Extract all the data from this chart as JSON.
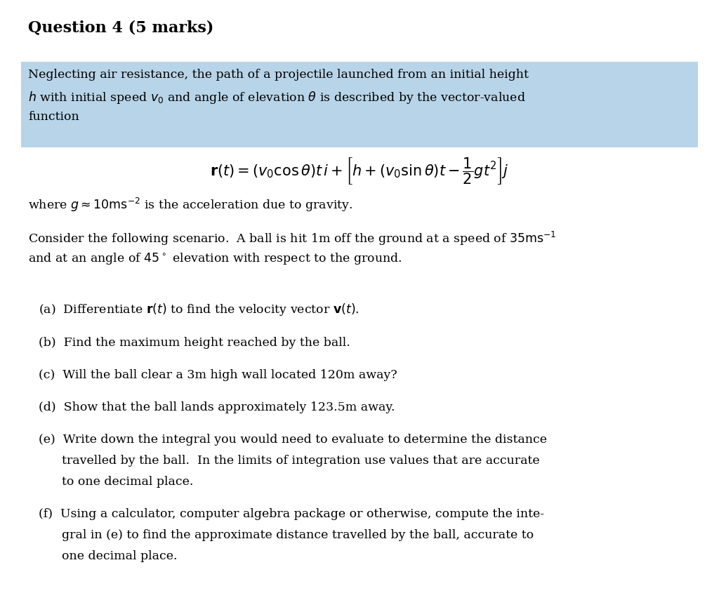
{
  "title": "Question 4 (5 marks)",
  "highlight_color": "#b8d4e8",
  "background_color": "#ffffff",
  "text_color": "#000000",
  "font_size_title": 16,
  "font_size_body": 12.5,
  "font_size_formula": 14,
  "highlight_lines": [
    "Neglecting air resistance, the path of a projectile launched from an initial height",
    "$h$ with initial speed $v_0$ and angle of elevation $\\theta$ is described by the vector-valued",
    "function"
  ],
  "gravity_line": "where $g \\approx 10\\mathrm{ms}^{-2}$ is the acceleration due to gravity.",
  "scenario_lines": [
    "Consider the following scenario.  A ball is hit 1m off the ground at a speed of $35\\mathrm{ms}^{-1}$",
    "and at an angle of $45^\\circ$ elevation with respect to the ground."
  ],
  "part_a": "(a)  Differentiate $\\mathbf{r}(t)$ to find the velocity vector $\\mathbf{v}(t)$.",
  "part_b": "(b)  Find the maximum height reached by the ball.",
  "part_c": "(c)  Will the ball clear a 3m high wall located 120m away?",
  "part_d": "(d)  Show that the ball lands approximately 123.5m away.",
  "part_e_lines": [
    "(e)  Write down the integral you would need to evaluate to determine the distance",
    "      travelled by the ball.  In the limits of integration use values that are accurate",
    "      to one decimal place."
  ],
  "part_f_lines": [
    "(f)  Using a calculator, computer algebra package or otherwise, compute the inte-",
    "      gral in (e) to find the approximate distance travelled by the ball, accurate to",
    "      one decimal place."
  ]
}
